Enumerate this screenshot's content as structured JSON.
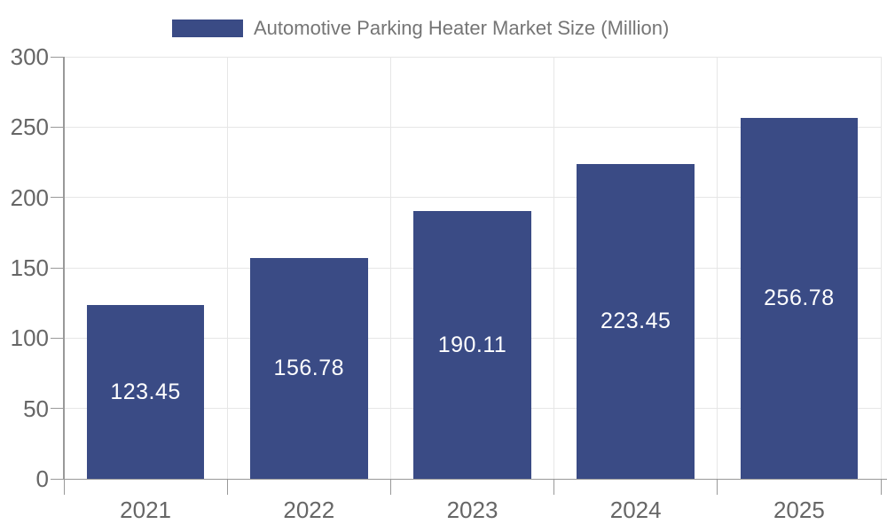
{
  "chart_data": {
    "type": "bar",
    "title": "Automotive Parking Heater Market Size (Million)",
    "series_name": "Automotive Parking Heater Market Size (Million)",
    "categories": [
      "2021",
      "2022",
      "2023",
      "2024",
      "2025"
    ],
    "values": [
      123.45,
      156.78,
      190.11,
      223.45,
      256.78
    ],
    "value_labels": [
      "123.45",
      "156.78",
      "190.11",
      "223.45",
      "256.78"
    ],
    "xlabel": "",
    "ylabel": "",
    "ylim": [
      0,
      300
    ],
    "yticks": [
      0,
      50,
      100,
      150,
      200,
      250,
      300
    ],
    "grid": true,
    "legend_position": "top",
    "bar_width_fraction": 0.72
  },
  "legend": {
    "label": "Automotive Parking Heater Market Size (Million)"
  },
  "colors": {
    "bar": "#3A4B85",
    "grid": "#E6E6E6",
    "axis": "#999999",
    "tick_text": "#666666",
    "legend_text": "#757575",
    "value_label": "#FFFFFF",
    "background": "#FFFFFF"
  }
}
